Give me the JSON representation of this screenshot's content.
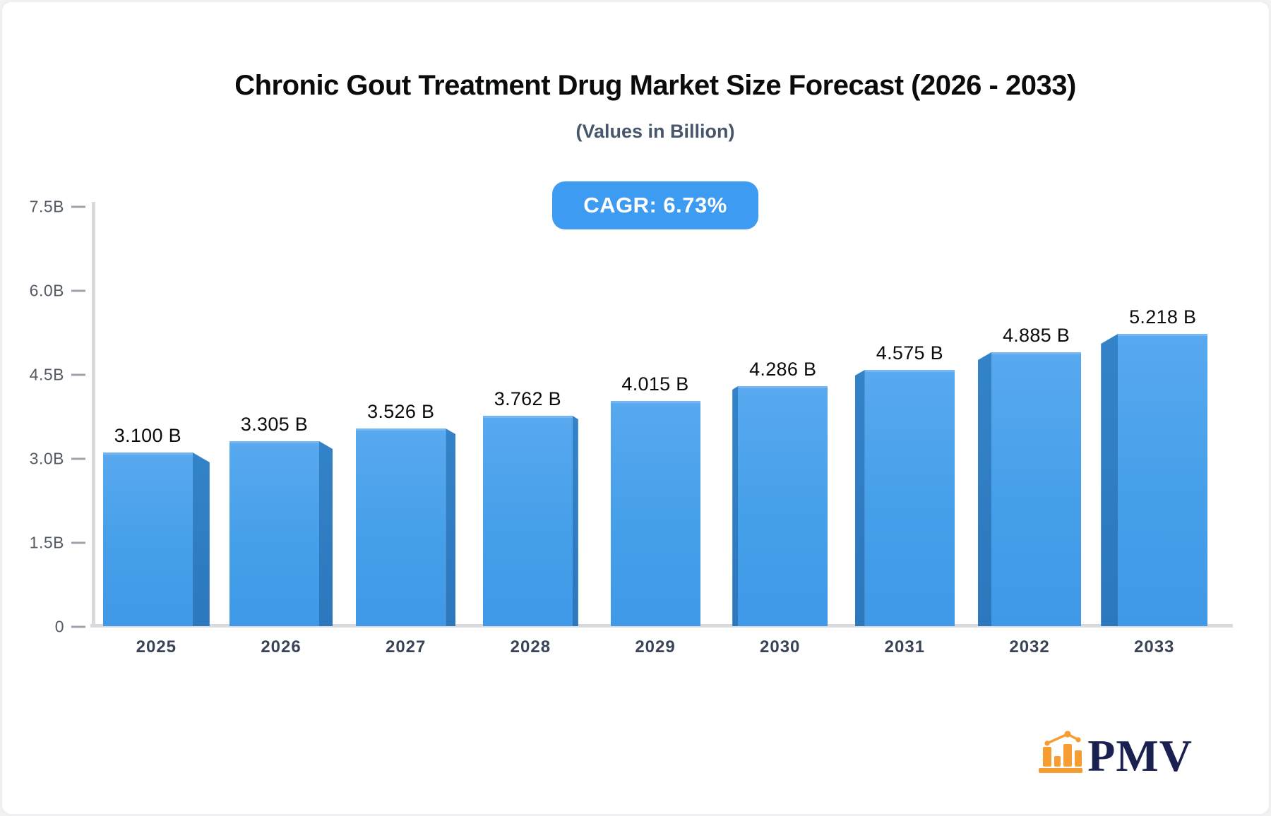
{
  "header": {
    "title": "Chronic Gout Treatment Drug Market Size Forecast (2026 - 2033)",
    "subtitle": "(Values in Billion)",
    "cagr_label": "CAGR: 6.73%"
  },
  "chart_data": {
    "type": "bar",
    "style": "3d-column",
    "title": "Chronic Gout Treatment Drug Market Size Forecast (2026 - 2033)",
    "subtitle": "(Values in Billion)",
    "cagr": "6.73%",
    "categories": [
      "2025",
      "2026",
      "2027",
      "2028",
      "2029",
      "2030",
      "2031",
      "2032",
      "2033"
    ],
    "values": [
      3.1,
      3.305,
      3.526,
      3.762,
      4.015,
      4.286,
      4.575,
      4.885,
      5.218
    ],
    "bar_labels": [
      "3.100 B",
      "3.305 B",
      "3.526 B",
      "3.762 B",
      "4.015 B",
      "4.286 B",
      "4.575 B",
      "4.885 B",
      "5.218 B"
    ],
    "unit": "Billion",
    "ylim": [
      0,
      7.5
    ],
    "yticks": [
      "7.5B",
      "6.0B",
      "4.5B",
      "3.0B",
      "1.5B",
      "0"
    ],
    "grid": false,
    "legend": false
  },
  "colors": {
    "bar_front": "#459FE9",
    "bar_side": "#2D77BD",
    "badge_bg": "#3D9BF2",
    "axis_line": "#D9DADE",
    "logo_orange": "#F59D33",
    "logo_navy": "#1A2150"
  },
  "logo": {
    "text": "PMV",
    "icon": "bar-chart-icon"
  }
}
